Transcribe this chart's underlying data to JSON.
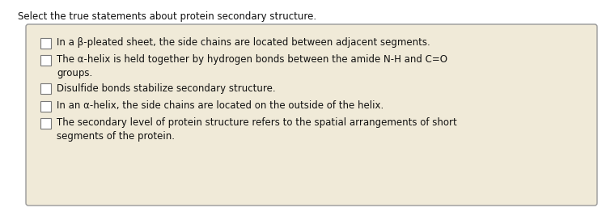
{
  "title": "Select the true statements about protein secondary structure.",
  "bg_color": "#f0ead8",
  "border_color": "#999999",
  "checkbox_color": "#ffffff",
  "checkbox_border": "#777777",
  "text_color": "#111111",
  "title_fontsize": 8.5,
  "item_fontsize": 8.5,
  "items": [
    "In a β-pleated sheet, the side chains are located between adjacent segments.",
    "The α-helix is held together by hydrogen bonds between the amide N-H and C=O\ngroups.",
    "Disulfide bonds stabilize secondary structure.",
    "In an α-helix, the side chains are located on the outside of the helix.",
    "The secondary level of protein structure refers to the spatial arrangements of short\nsegments of the protein."
  ],
  "item_heights": [
    1,
    2,
    1,
    1,
    2
  ],
  "fig_width": 7.49,
  "fig_height": 2.62,
  "dpi": 100
}
